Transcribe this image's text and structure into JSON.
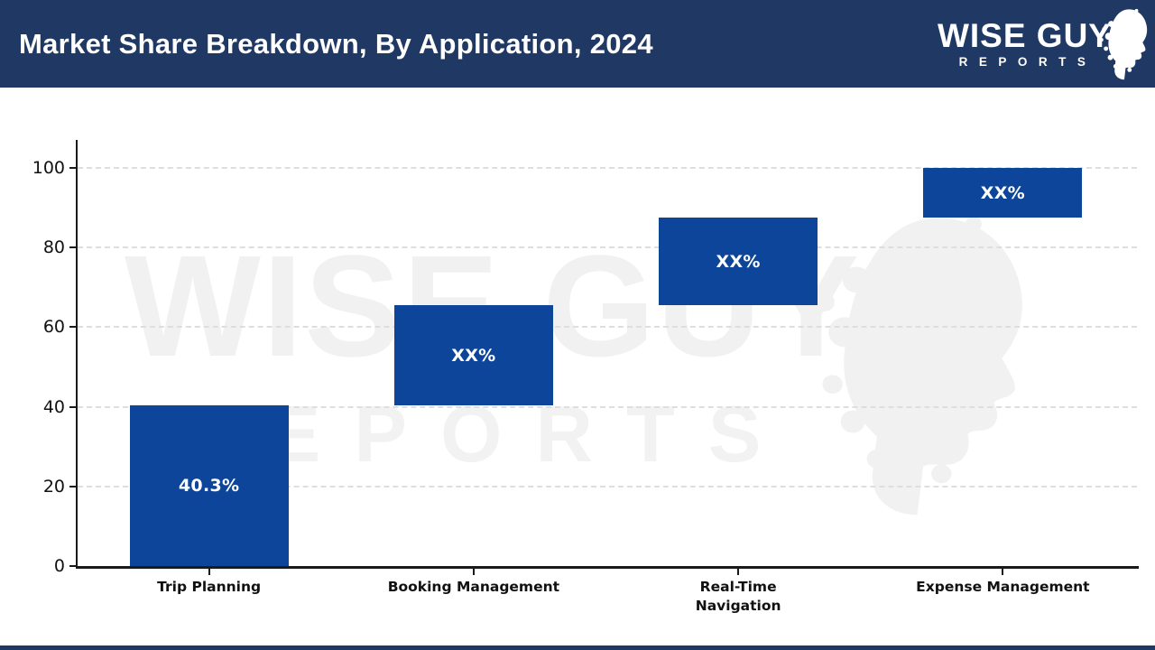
{
  "header": {
    "title": "Market Share Breakdown, By Application, 2024",
    "logo": {
      "wordmark": "WISE GUY",
      "subtext": "REPORTS"
    }
  },
  "watermark": {
    "wordmark": "WISE GUY",
    "subtext": "REPORTS"
  },
  "chart_data": {
    "type": "bar",
    "subtype": "waterfall",
    "title": "Market Share Breakdown, By Application, 2024",
    "categories": [
      "Trip Planning",
      "Booking Management",
      "Real-Time\nNavigation",
      "Expense Management"
    ],
    "segments": [
      {
        "category": "Trip Planning",
        "start": 0,
        "end": 40.3,
        "label": "40.3%"
      },
      {
        "category": "Booking Management",
        "start": 40.3,
        "end": 65.5,
        "label": "XX%"
      },
      {
        "category": "Real-Time Navigation",
        "start": 65.5,
        "end": 87.5,
        "label": "XX%"
      },
      {
        "category": "Expense Management",
        "start": 87.5,
        "end": 100,
        "label": "XX%"
      }
    ],
    "y_ticks": [
      0,
      20,
      40,
      60,
      80,
      100
    ],
    "ylim": [
      0,
      107
    ],
    "xlabel": "",
    "ylabel": "",
    "grid": "horizontal-dashed",
    "legend": "none",
    "bar_color": "#0C4599",
    "bar_label_color": "#FFFFFF",
    "axis_color": "#1A1A1A",
    "gridline_color": "#DEDEDE"
  },
  "colors": {
    "header_bg": "#1F3864",
    "footer_bg": "#1F3864",
    "page_bg": "#FFFFFF"
  }
}
